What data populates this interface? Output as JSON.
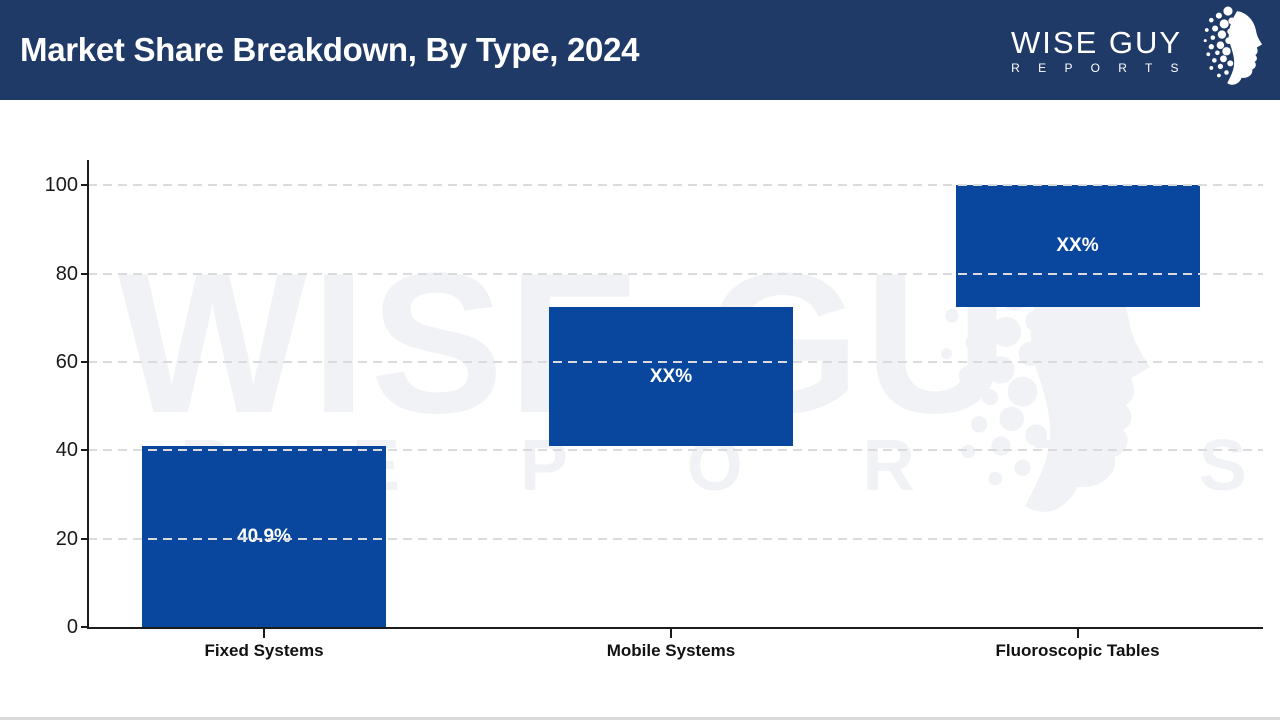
{
  "header": {
    "title": "Market Share Breakdown, By Type, 2024",
    "logo": {
      "name_line": "WISE GUY",
      "sub_line": "R E P O R T S"
    }
  },
  "watermark": {
    "name_line": "WISE GUY",
    "sub_line": "R E P O R T S"
  },
  "colors": {
    "header_bg": "#203A68",
    "bar": "#09479E",
    "grid": "#DBDBDE",
    "axis": "#1C1C1C",
    "watermark": "#F1F2F5",
    "bar_label": "#FFFFFF"
  },
  "chart_data": {
    "type": "bar",
    "variant": "waterfall",
    "title": "Market Share Breakdown, By Type, 2024",
    "categories": [
      "Fixed Systems",
      "Mobile Systems",
      "Fluoroscopic Tables"
    ],
    "series": [
      {
        "name": "Fixed Systems",
        "start": 0,
        "end": 40.9,
        "label": "40.9%"
      },
      {
        "name": "Mobile Systems",
        "start": 40.9,
        "end": 72.5,
        "label": "XX%"
      },
      {
        "name": "Fluoroscopic Tables",
        "start": 72.5,
        "end": 100,
        "label": "XX%"
      }
    ],
    "xlabel": "",
    "ylabel": "",
    "yticks": [
      0,
      20,
      40,
      60,
      80,
      100
    ],
    "ylim": [
      0,
      105.7
    ],
    "grid": "horizontal-dashed",
    "legend": "none",
    "bar_color": "#09479E",
    "label_color": "#FFFFFF"
  }
}
